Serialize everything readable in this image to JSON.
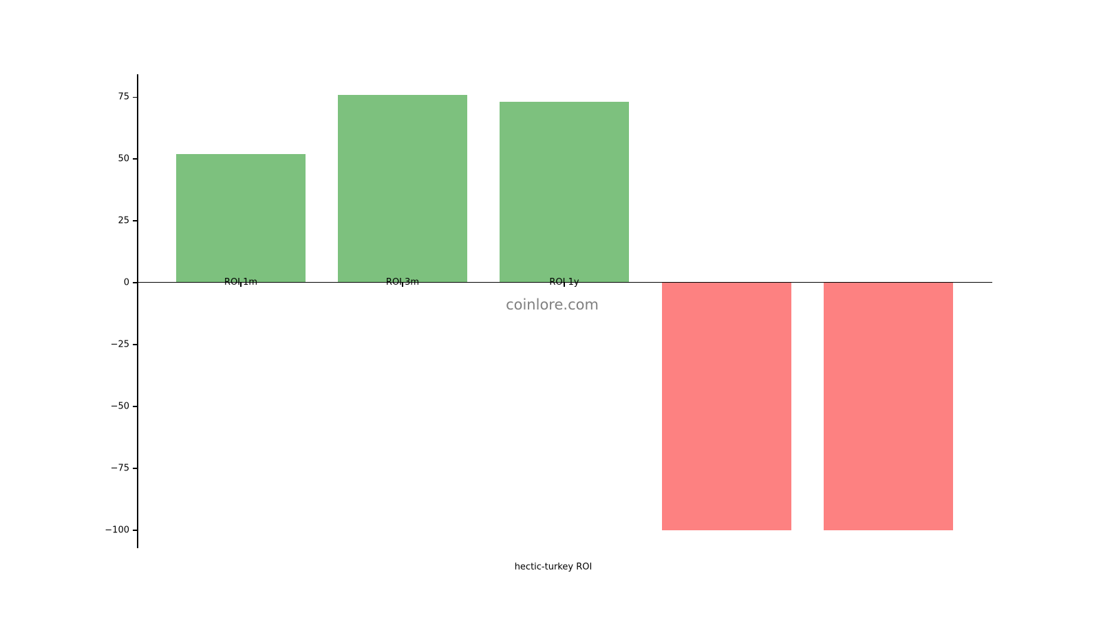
{
  "chart_data": {
    "type": "bar",
    "title": "hectic-turkey ROI",
    "watermark": "coinlore.com",
    "categories": [
      "ROI 1m",
      "ROI 3m",
      "ROI 1y",
      "",
      ""
    ],
    "values": [
      52,
      76,
      73,
      -100,
      -100
    ],
    "series": [
      {
        "name": "ROI",
        "values": [
          52,
          76,
          73,
          -100,
          -100
        ]
      }
    ],
    "colors": {
      "positive": "#7dc17e",
      "negative": "#fd8181",
      "axis": "#000000",
      "watermark_gray": "#808080"
    },
    "xlabel": "",
    "ylabel": "",
    "yticks": {
      "values": [
        75,
        50,
        25,
        0,
        -25,
        -50,
        -75,
        -100
      ],
      "labels": [
        "75",
        "50",
        "25",
        "0",
        "−25",
        "−50",
        "−75",
        "−100"
      ]
    },
    "ylim": [
      -108,
      84
    ],
    "grid": false,
    "legend": "none",
    "notes": "negative bars have no visible x tick labels (hidden behind bars)"
  }
}
